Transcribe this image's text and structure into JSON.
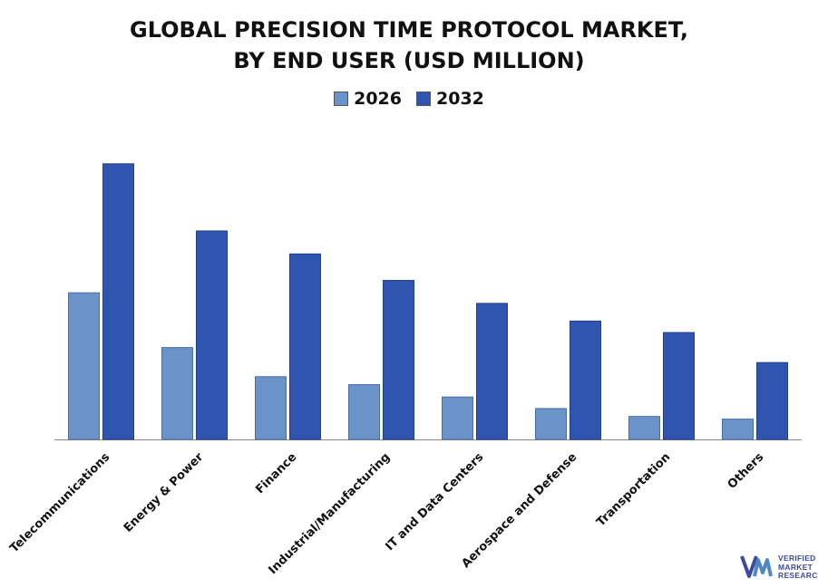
{
  "chart_data": {
    "type": "bar",
    "title_lines": [
      "GLOBAL PRECISION TIME PROTOCOL MARKET,",
      "BY END USER (USD MILLION)"
    ],
    "categories": [
      "Telecommunications",
      "Energy & Power",
      "Finance",
      "Industrial/Manufacturing",
      "IT and Data Centers",
      "Aerospace and Defense",
      "Transportation",
      "Others"
    ],
    "series": [
      {
        "name": "2026",
        "color": "#6a93c9",
        "values": [
          166,
          104,
          71,
          62,
          48,
          35,
          26,
          23
        ]
      },
      {
        "name": "2032",
        "color": "#2f55b0",
        "values": [
          312,
          236,
          210,
          180,
          154,
          134,
          121,
          87
        ]
      }
    ],
    "xlabel": "",
    "ylabel": "",
    "ylim": [
      0,
      320
    ],
    "grid": false,
    "legend_position": "top-center"
  },
  "logo": {
    "lines": [
      "VERIFIED",
      "MARKET",
      "RESEARCH"
    ]
  }
}
